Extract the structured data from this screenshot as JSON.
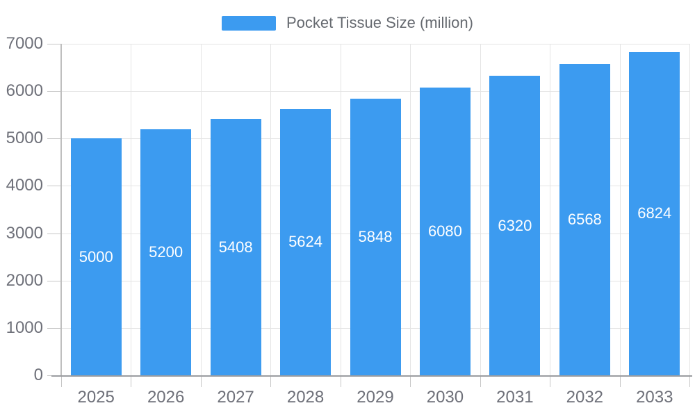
{
  "legend": {
    "label": "Pocket Tissue Size (million)",
    "swatch_color": "#3c9bf0"
  },
  "chart_data": {
    "type": "bar",
    "title": "",
    "legend_label": "Pocket Tissue Size (million)",
    "legend_position": "top-center",
    "categories": [
      "2025",
      "2026",
      "2027",
      "2028",
      "2029",
      "2030",
      "2031",
      "2032",
      "2033"
    ],
    "values": [
      5000,
      5200,
      5408,
      5624,
      5848,
      6080,
      6320,
      6568,
      6824
    ],
    "value_labels": [
      "5000",
      "5200",
      "5408",
      "5624",
      "5848",
      "6080",
      "6320",
      "6568",
      "6824"
    ],
    "value_label_position": "inside-center",
    "xlabel": "",
    "ylabel": "",
    "ylim": [
      0,
      7000
    ],
    "y_ticks": [
      0,
      1000,
      2000,
      3000,
      4000,
      5000,
      6000,
      7000
    ],
    "grid": true,
    "bar_color": "#3c9bf0",
    "bar_label_color": "#ffffff",
    "axis_label_color": "#6e7079",
    "gridline_color": "#e4e4e4"
  }
}
